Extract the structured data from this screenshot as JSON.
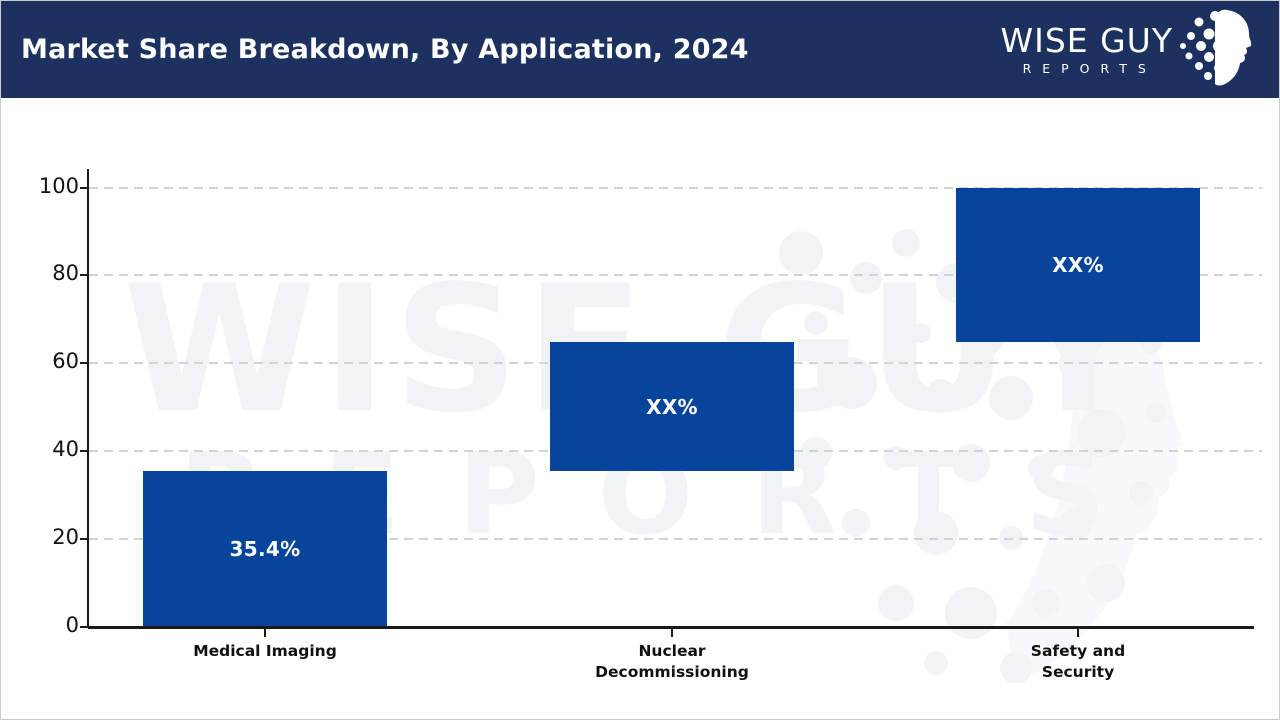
{
  "header": {
    "title": "Market Share Breakdown, By Application, 2024",
    "bg_color": "#1d3160",
    "logo": {
      "wordmark": "WISE GUY",
      "subtext": "REPORTS"
    }
  },
  "watermark": {
    "line1": "WISE GUY",
    "line2": "REPORTS",
    "color": "#f2f3f5"
  },
  "chart_data": {
    "type": "bar",
    "subtype": "waterfall-stacked-breakdown",
    "title": "Market Share Breakdown, By Application, 2024",
    "categories": [
      "Medical Imaging",
      "Nuclear\nDecommissioning",
      "Safety and\nSecurity"
    ],
    "bars": [
      {
        "category": "Medical Imaging",
        "start": 0,
        "end": 35.4,
        "label": "35.4%"
      },
      {
        "category": "Nuclear Decommissioning",
        "start": 35.4,
        "end": 64.8,
        "label": "XX%"
      },
      {
        "category": "Safety and Security",
        "start": 64.8,
        "end": 100,
        "label": "XX%"
      }
    ],
    "yticks": [
      0,
      20,
      40,
      60,
      80,
      100
    ],
    "ylim": [
      0,
      104
    ],
    "grid": "horizontal dashed",
    "legend": "none",
    "bar_color": "#07449c",
    "bar_label_color": "#ffffff"
  }
}
